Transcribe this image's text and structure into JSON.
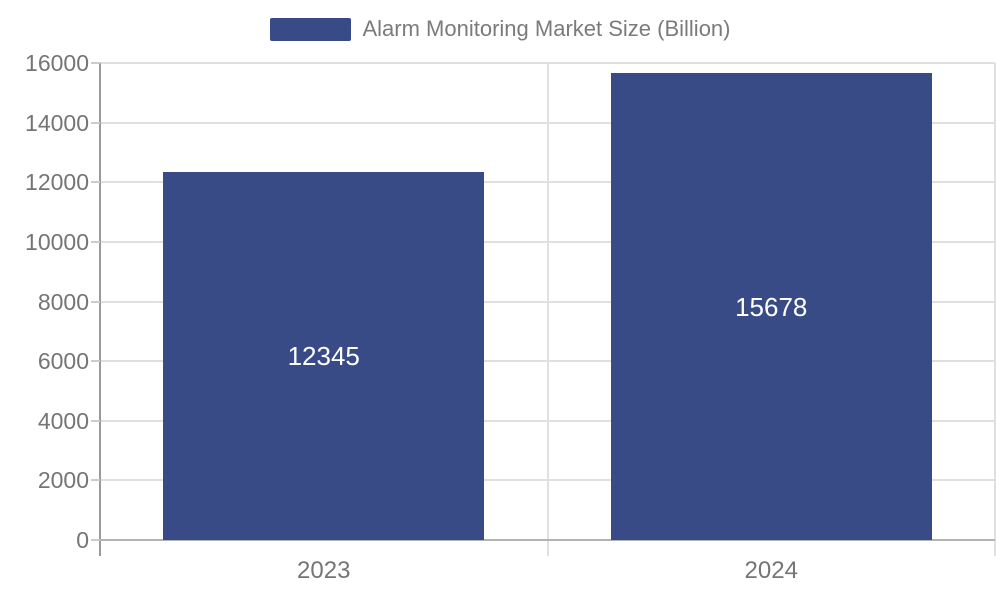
{
  "legend": {
    "label": "Alarm Monitoring Market Size (Billion)"
  },
  "chart_data": {
    "type": "bar",
    "title": "Alarm Monitoring Market Size (Billion)",
    "series_name": "Alarm Monitoring Market Size (Billion)",
    "categories": [
      "2023",
      "2024"
    ],
    "values": [
      12345,
      15678
    ],
    "bar_labels": [
      "12345",
      "15678"
    ],
    "xlabel": "",
    "ylabel": "",
    "ylim": [
      0,
      16000
    ],
    "yticks": [
      0,
      2000,
      4000,
      6000,
      8000,
      10000,
      12000,
      14000,
      16000
    ],
    "grid": true,
    "legend_position": "top-center"
  },
  "colors": {
    "bar": "#394B86",
    "bar_label": "#FFFFFF",
    "gridline": "#E0E0E0",
    "y_axis_line": "#999999",
    "x_axis_line": "#B3B3B3",
    "tick_mark": "#CCCCCC",
    "axis_label": "#757575",
    "legend_text": "#7B7B7B",
    "background": "#FFFFFF"
  }
}
